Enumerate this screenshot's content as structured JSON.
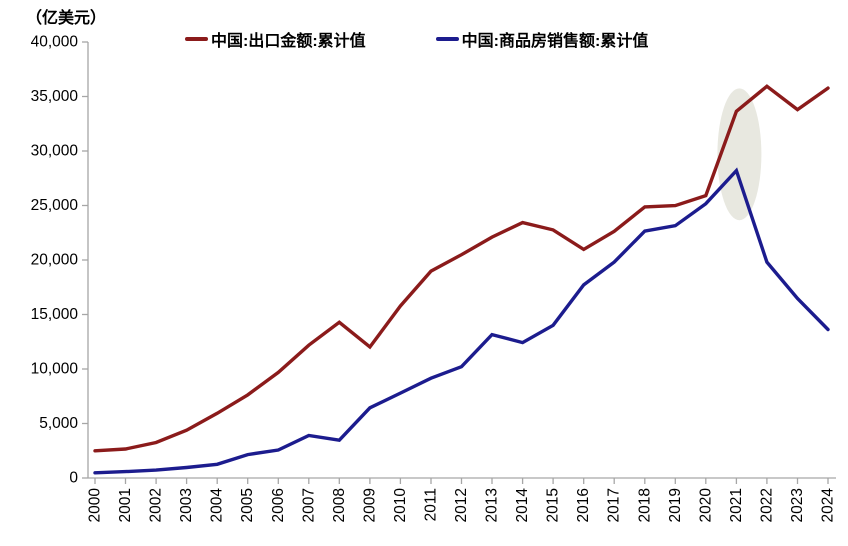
{
  "chart_data": {
    "type": "line",
    "title": "",
    "unit_label": "（亿美元）",
    "legend_position": "top",
    "grid": false,
    "x": [
      "2000",
      "2001",
      "2002",
      "2003",
      "2004",
      "2005",
      "2006",
      "2007",
      "2008",
      "2009",
      "2010",
      "2011",
      "2012",
      "2013",
      "2014",
      "2015",
      "2016",
      "2017",
      "2018",
      "2019",
      "2020",
      "2021",
      "2022",
      "2023",
      "2024"
    ],
    "series": [
      {
        "name": "中国:出口金额:累计值",
        "color": "#8B1B1B",
        "values": [
          2492,
          2661,
          3256,
          4382,
          5933,
          7620,
          9690,
          12180,
          14285,
          12016,
          15778,
          18986,
          20489,
          22100,
          23433,
          22766,
          20976,
          22633,
          24867,
          24990,
          25906,
          33640,
          35936,
          33800,
          35772
        ]
      },
      {
        "name": "中国:商品房销售额:累计值",
        "color": "#1C1C8E",
        "values": [
          475,
          587,
          729,
          961,
          1253,
          2146,
          2573,
          3895,
          3464,
          6441,
          7788,
          9152,
          10215,
          13155,
          12425,
          14009,
          17715,
          19808,
          22654,
          23149,
          25161,
          28206,
          19809,
          16472,
          13627
        ]
      }
    ],
    "ylim": [
      0,
      40000
    ],
    "y_tick_step": 5000,
    "y_tick_labels": [
      "0",
      "5,000",
      "10,000",
      "15,000",
      "20,000",
      "25,000",
      "30,000",
      "35,000",
      "40,000"
    ],
    "axis_color": "#A6A6A6",
    "tick_label_color": "#000000",
    "highlight": {
      "shape": "ellipse",
      "year": "2021",
      "year_center": 21.1,
      "value_center": 29700,
      "value_radius": 6050,
      "year_radius": 0.72,
      "color": "#E8E8E0"
    }
  }
}
